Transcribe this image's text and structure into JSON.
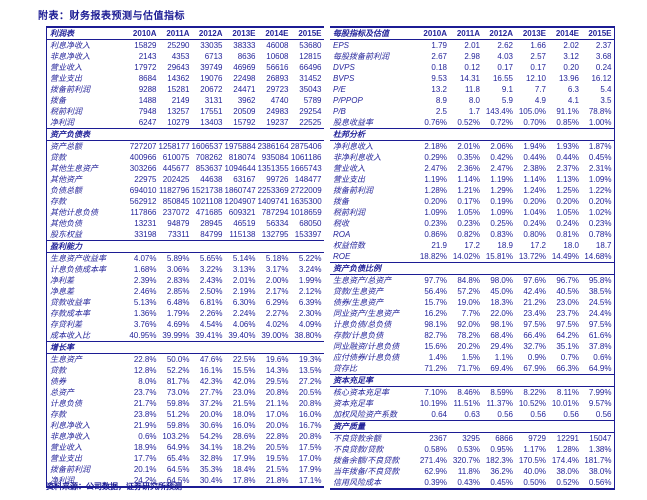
{
  "title": "附表：财务报表预测与估值指标",
  "footer": "资料来源：公司数据，证券研究所预测",
  "colors": {
    "navy_text": "#24249a",
    "navy_border": "#1c1c94",
    "background": "#ffffff"
  },
  "years": [
    "2010A",
    "2011A",
    "2012A",
    "2013E",
    "2014E",
    "2015E"
  ],
  "left_table": {
    "header_label": "利润表",
    "sections": [
      {
        "name": "",
        "rows": [
          [
            "利息净收入",
            "15829",
            "25290",
            "33035",
            "38333",
            "46008",
            "53680"
          ],
          [
            "非息净收入",
            "2143",
            "4353",
            "6713",
            "8636",
            "10608",
            "12815"
          ],
          [
            "营业收入",
            "17972",
            "29643",
            "39749",
            "46969",
            "56616",
            "66496"
          ],
          [
            "营业支出",
            "8684",
            "14362",
            "19076",
            "22498",
            "26893",
            "31452"
          ],
          [
            "拨备前利润",
            "9288",
            "15281",
            "20672",
            "24471",
            "29723",
            "35043"
          ],
          [
            "拨备",
            "1488",
            "2149",
            "3131",
            "3962",
            "4740",
            "5789"
          ],
          [
            "税前利润",
            "7948",
            "13257",
            "17551",
            "20509",
            "24983",
            "29254"
          ],
          [
            "净利润",
            "6247",
            "10279",
            "13403",
            "15792",
            "19237",
            "22525"
          ]
        ]
      },
      {
        "name": "资产负债表",
        "rows": [
          [
            "资产总额",
            "727207",
            "1258177",
            "1606537",
            "1975884",
            "2386164",
            "2875406"
          ],
          [
            "贷款",
            "400966",
            "610075",
            "708262",
            "818074",
            "935084",
            "1061186"
          ],
          [
            "其他生息资产",
            "303266",
            "445677",
            "853637",
            "1094644",
            "1351355",
            "1665743"
          ],
          [
            "其他资产",
            "22975",
            "202425",
            "44638",
            "63167",
            "99726",
            "148477"
          ],
          [
            "负债总额",
            "694010",
            "1182796",
            "1521738",
            "1860747",
            "2253369",
            "2722009"
          ],
          [
            "存款",
            "562912",
            "850845",
            "1021108",
            "1204907",
            "1409741",
            "1635300"
          ],
          [
            "其他计息负债",
            "117866",
            "237072",
            "471685",
            "609321",
            "787294",
            "1018659"
          ],
          [
            "其他负债",
            "13231",
            "94879",
            "28945",
            "46519",
            "56334",
            "68050"
          ],
          [
            "股东权益",
            "33198",
            "73311",
            "84799",
            "115138",
            "132795",
            "153397"
          ]
        ]
      },
      {
        "name": "盈利能力",
        "rows": [
          [
            "生息资产收益率",
            "4.07%",
            "5.89%",
            "5.65%",
            "5.14%",
            "5.18%",
            "5.22%"
          ],
          [
            "计息负债成本率",
            "1.68%",
            "3.06%",
            "3.22%",
            "3.13%",
            "3.17%",
            "3.24%"
          ],
          [
            "净利差",
            "2.39%",
            "2.83%",
            "2.43%",
            "2.01%",
            "2.00%",
            "1.99%"
          ],
          [
            "净息差",
            "2.46%",
            "2.85%",
            "2.50%",
            "2.19%",
            "2.17%",
            "2.12%"
          ],
          [
            "贷款收益率",
            "5.13%",
            "6.48%",
            "6.81%",
            "6.30%",
            "6.29%",
            "6.39%"
          ],
          [
            "存款成本率",
            "1.36%",
            "1.79%",
            "2.26%",
            "2.24%",
            "2.27%",
            "2.30%"
          ],
          [
            "存贷利差",
            "3.76%",
            "4.69%",
            "4.54%",
            "4.06%",
            "4.02%",
            "4.09%"
          ],
          [
            "成本收入比",
            "40.95%",
            "39.99%",
            "39.41%",
            "39.40%",
            "39.00%",
            "38.80%"
          ]
        ]
      },
      {
        "name": "增长率",
        "rows": [
          [
            "生息资产",
            "22.8%",
            "50.0%",
            "47.6%",
            "22.5%",
            "19.6%",
            "19.3%"
          ],
          [
            "贷款",
            "12.8%",
            "52.2%",
            "16.1%",
            "15.5%",
            "14.3%",
            "13.5%"
          ],
          [
            "债券",
            "8.0%",
            "81.7%",
            "42.3%",
            "42.0%",
            "29.5%",
            "27.2%"
          ],
          [
            "总资产",
            "23.7%",
            "73.0%",
            "27.7%",
            "23.0%",
            "20.8%",
            "20.5%"
          ],
          [
            "计息负债",
            "21.7%",
            "59.8%",
            "37.2%",
            "21.5%",
            "21.1%",
            "20.8%"
          ],
          [
            "存款",
            "23.8%",
            "51.2%",
            "20.0%",
            "18.0%",
            "17.0%",
            "16.0%"
          ],
          [
            "利息净收入",
            "21.9%",
            "59.8%",
            "30.6%",
            "16.0%",
            "20.0%",
            "16.7%"
          ],
          [
            "非息净收入",
            "0.6%",
            "103.2%",
            "54.2%",
            "28.6%",
            "22.8%",
            "20.8%"
          ],
          [
            "营业收入",
            "18.9%",
            "64.9%",
            "34.1%",
            "18.2%",
            "20.5%",
            "17.5%"
          ],
          [
            "营业支出",
            "17.7%",
            "65.4%",
            "32.8%",
            "17.9%",
            "19.5%",
            "17.0%"
          ],
          [
            "拨备前利润",
            "20.1%",
            "64.5%",
            "35.3%",
            "18.4%",
            "21.5%",
            "17.9%"
          ],
          [
            "净利润",
            "24.2%",
            "64.5%",
            "30.4%",
            "17.8%",
            "21.8%",
            "17.1%"
          ]
        ]
      }
    ]
  },
  "right_table": {
    "header_label": "每股指标及估值",
    "sections": [
      {
        "name": "",
        "rows": [
          [
            "EPS",
            "1.79",
            "2.01",
            "2.62",
            "1.66",
            "2.02",
            "2.37"
          ],
          [
            "每股拨备前利润",
            "2.67",
            "2.98",
            "4.03",
            "2.57",
            "3.12",
            "3.68"
          ],
          [
            "DVPS",
            "0.18",
            "0.12",
            "0.17",
            "0.17",
            "0.20",
            "0.24"
          ],
          [
            "BVPS",
            "9.53",
            "14.31",
            "16.55",
            "12.10",
            "13.96",
            "16.12"
          ],
          [
            "P/E",
            "13.2",
            "11.8",
            "9.1",
            "7.7",
            "6.3",
            "5.4"
          ],
          [
            "P/PPOP",
            "8.9",
            "8.0",
            "5.9",
            "4.9",
            "4.1",
            "3.5"
          ],
          [
            "P/B",
            "2.5",
            "1.7",
            "143.4%",
            "105.0%",
            "91.1%",
            "78.8%"
          ],
          [
            "股息收益率",
            "0.76%",
            "0.52%",
            "0.72%",
            "0.70%",
            "0.85%",
            "1.00%"
          ]
        ]
      },
      {
        "name": "杜邦分析",
        "rows": [
          [
            "净利息收入",
            "2.18%",
            "2.01%",
            "2.06%",
            "1.94%",
            "1.93%",
            "1.87%"
          ],
          [
            "非净利息收入",
            "0.29%",
            "0.35%",
            "0.42%",
            "0.44%",
            "0.44%",
            "0.45%"
          ],
          [
            "营业收入",
            "2.47%",
            "2.36%",
            "2.47%",
            "2.38%",
            "2.37%",
            "2.31%"
          ],
          [
            "营业支出",
            "1.19%",
            "1.14%",
            "1.19%",
            "1.14%",
            "1.13%",
            "1.09%"
          ],
          [
            "拨备前利润",
            "1.28%",
            "1.21%",
            "1.29%",
            "1.24%",
            "1.25%",
            "1.22%"
          ],
          [
            "拨备",
            "0.20%",
            "0.17%",
            "0.19%",
            "0.20%",
            "0.20%",
            "0.20%"
          ],
          [
            "税前利润",
            "1.09%",
            "1.05%",
            "1.09%",
            "1.04%",
            "1.05%",
            "1.02%"
          ],
          [
            "税收",
            "0.23%",
            "0.23%",
            "0.25%",
            "0.24%",
            "0.24%",
            "0.23%"
          ],
          [
            "ROA",
            "0.86%",
            "0.82%",
            "0.83%",
            "0.80%",
            "0.81%",
            "0.78%"
          ],
          [
            "权益倍数",
            "21.9",
            "17.2",
            "18.9",
            "17.2",
            "18.0",
            "18.7"
          ],
          [
            "ROE",
            "18.82%",
            "14.02%",
            "15.81%",
            "13.72%",
            "14.49%",
            "14.68%"
          ]
        ]
      },
      {
        "name": "资产负债比例",
        "rows": [
          [
            "生息资产/总资产",
            "97.7%",
            "84.8%",
            "98.0%",
            "97.6%",
            "96.7%",
            "95.8%"
          ],
          [
            "贷款/生息资产",
            "56.4%",
            "57.2%",
            "45.0%",
            "42.4%",
            "40.5%",
            "38.5%"
          ],
          [
            "债券/生息资产",
            "15.7%",
            "19.0%",
            "18.3%",
            "21.2%",
            "23.0%",
            "24.5%"
          ],
          [
            "同业资产/生息资产",
            "16.2%",
            "7.7%",
            "22.0%",
            "23.4%",
            "23.7%",
            "24.4%"
          ],
          [
            "计息负债/总负债",
            "98.1%",
            "92.0%",
            "98.1%",
            "97.5%",
            "97.5%",
            "97.5%"
          ],
          [
            "存款/计息负债",
            "82.7%",
            "78.2%",
            "68.4%",
            "66.4%",
            "64.2%",
            "61.6%"
          ],
          [
            "同业融资/计息负债",
            "15.6%",
            "20.2%",
            "29.4%",
            "32.7%",
            "35.1%",
            "37.8%"
          ],
          [
            "应付债券/计息负债",
            "1.4%",
            "1.5%",
            "1.1%",
            "0.9%",
            "0.7%",
            "0.6%"
          ],
          [
            "贷存比",
            "71.2%",
            "71.7%",
            "69.4%",
            "67.9%",
            "66.3%",
            "64.9%"
          ]
        ]
      },
      {
        "name": "资本充足率",
        "rows": [
          [
            "核心资本充足率",
            "7.10%",
            "8.46%",
            "8.59%",
            "8.22%",
            "8.11%",
            "7.99%"
          ],
          [
            "资本充足率",
            "10.19%",
            "11.51%",
            "11.37%",
            "10.52%",
            "10.01%",
            "9.57%"
          ],
          [
            "加权风险资产系数",
            "0.64",
            "0.63",
            "0.56",
            "0.56",
            "0.56",
            "0.56"
          ]
        ]
      },
      {
        "name": "资产质量",
        "rows": [
          [
            "不良贷款余额",
            "2367",
            "3295",
            "6866",
            "9729",
            "12291",
            "15047"
          ],
          [
            "不良贷款/贷款",
            "0.58%",
            "0.53%",
            "0.95%",
            "1.17%",
            "1.28%",
            "1.38%"
          ],
          [
            "拨备余额/不良贷款",
            "271.4%",
            "320.7%",
            "182.3%",
            "170.5%",
            "174.4%",
            "181.7%"
          ],
          [
            "当年拨备/不良贷款",
            "62.9%",
            "11.8%",
            "36.2%",
            "40.0%",
            "38.0%",
            "38.0%"
          ],
          [
            "信用风险成本",
            "0.39%",
            "0.43%",
            "0.45%",
            "0.50%",
            "0.52%",
            "0.56%"
          ]
        ]
      }
    ]
  }
}
